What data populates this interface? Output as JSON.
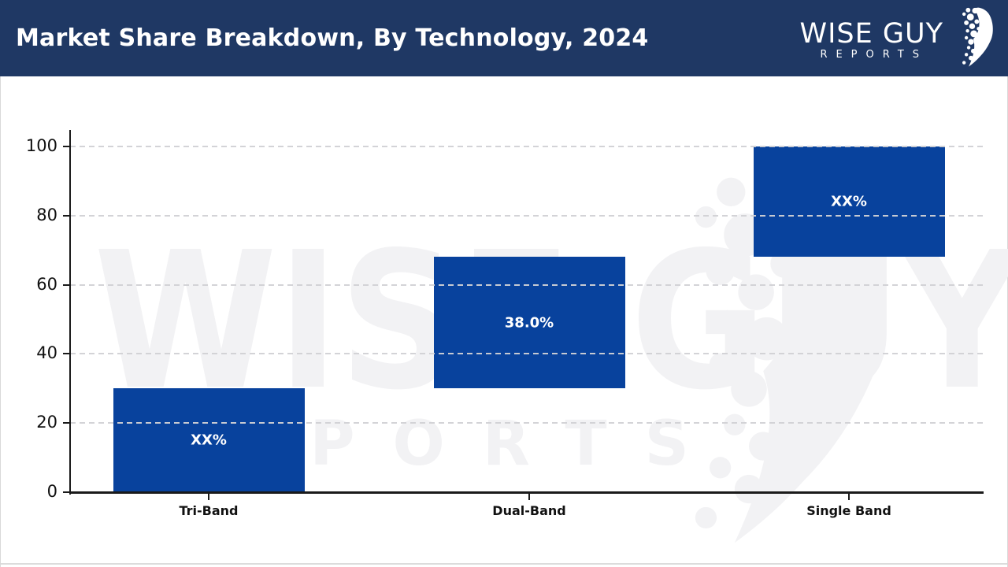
{
  "header": {
    "title": "Market Share Breakdown, By Technology, 2024",
    "logo": {
      "primary": "WISE GUY",
      "secondary": "REPORTS"
    }
  },
  "watermark": {
    "primary": "WISE GUY",
    "secondary": "REPORTS"
  },
  "chart_data": {
    "type": "bar",
    "subtype": "waterfall",
    "title": "Market Share Breakdown, By Technology, 2024",
    "categories": [
      "Tri-Band",
      "Dual-Band",
      "Single Band"
    ],
    "series": [
      {
        "category": "Tri-Band",
        "start": 0,
        "end": 30,
        "value": 30,
        "value_label": "XX%"
      },
      {
        "category": "Dual-Band",
        "start": 30,
        "end": 68,
        "value": 38,
        "value_label": "38.0%"
      },
      {
        "category": "Single Band",
        "start": 68,
        "end": 100,
        "value": 32,
        "value_label": "XX%"
      }
    ],
    "xlabel": "",
    "ylabel": "",
    "y_ticks": [
      0,
      20,
      40,
      60,
      80,
      100
    ],
    "ylim": [
      0,
      105
    ],
    "grid": "horizontal-dashed",
    "legend": "none",
    "colors": {
      "bar": "#08429d",
      "bar_label": "#ffffff",
      "header_bg": "#1f3864",
      "header_text": "#ffffff",
      "axis": "#1a1a1a",
      "tick_text": "#111111",
      "gridline": "#d9d9d9",
      "watermark": "#f2f2f4"
    }
  }
}
